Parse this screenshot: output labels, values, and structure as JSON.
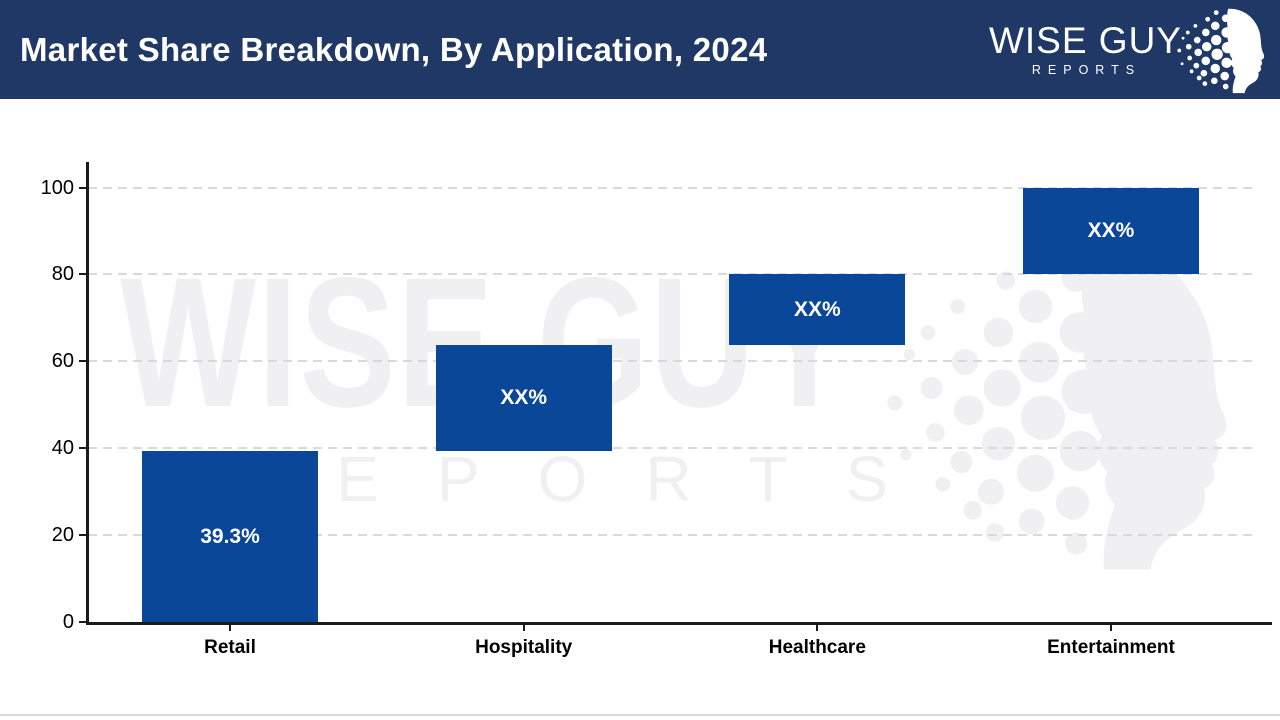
{
  "header": {
    "title": "Market Share Breakdown, By Application, 2024",
    "brand": {
      "name": "WISE GUY",
      "sub": "REPORTS"
    }
  },
  "watermark": {
    "line1": "WISE GUY",
    "line2": "REPORTS"
  },
  "chart_data": {
    "type": "bar",
    "subtype": "waterfall",
    "title": "Market Share Breakdown, By Application, 2024",
    "categories": [
      "Retail",
      "Hospitality",
      "Healthcare",
      "Entertainment"
    ],
    "segments": [
      {
        "category": "Retail",
        "start": 0,
        "end": 39.3,
        "label": "39.3%"
      },
      {
        "category": "Hospitality",
        "start": 39.3,
        "end": 63.7,
        "label": "XX%"
      },
      {
        "category": "Healthcare",
        "start": 63.7,
        "end": 80.1,
        "label": "XX%"
      },
      {
        "category": "Entertainment",
        "start": 80.1,
        "end": 100,
        "label": "XX%"
      }
    ],
    "xlabel": "",
    "ylabel": "",
    "ylim": [
      0,
      100
    ],
    "yticks": [
      0,
      20,
      40,
      60,
      80,
      100
    ],
    "grid": "horizontal-dashed",
    "legend": "none",
    "colors": {
      "bar": "#0b4798",
      "bar_label": "#ffffff",
      "header_bg": "#203866",
      "axis": "#1a1a1a",
      "gridline": "#d9d9d9",
      "tick_label": "#000000",
      "watermark": "#f0f0f3"
    }
  }
}
